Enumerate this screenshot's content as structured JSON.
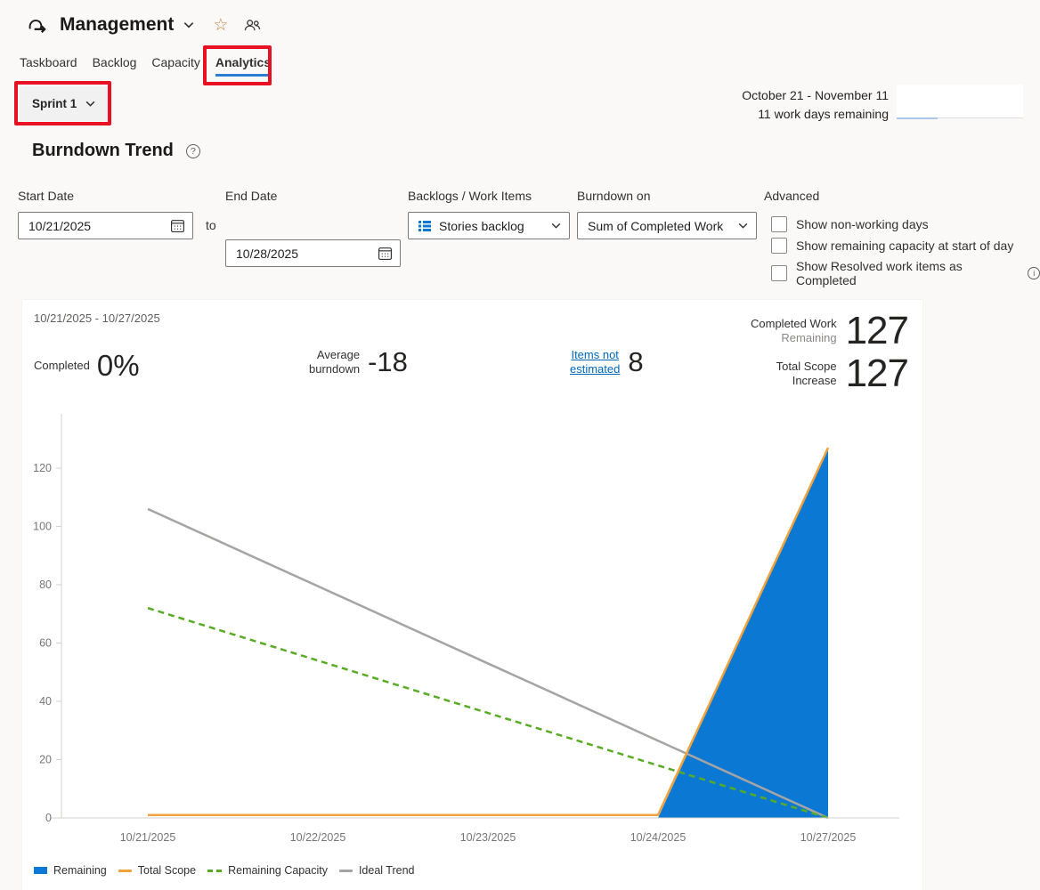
{
  "header": {
    "project_name": "Management",
    "tabs": [
      {
        "label": "Taskboard",
        "active": false
      },
      {
        "label": "Backlog",
        "active": false
      },
      {
        "label": "Capacity",
        "active": false
      },
      {
        "label": "Analytics",
        "active": true
      }
    ],
    "sprint_selector": {
      "label": "Sprint 1"
    },
    "iteration_dates": "October 21 - November 11",
    "days_remaining": "11 work days remaining"
  },
  "page": {
    "title": "Burndown Trend"
  },
  "filters": {
    "start_date": {
      "label": "Start Date",
      "value": "10/21/2025"
    },
    "to_label": "to",
    "end_date": {
      "label": "End Date",
      "value": "10/28/2025"
    },
    "backlog_picker": {
      "label": "Backlogs / Work Items",
      "value": "Stories backlog"
    },
    "burndown_on": {
      "label": "Burndown on",
      "value": "Sum of Completed Work"
    },
    "advanced": {
      "label": "Advanced",
      "options": [
        {
          "label": "Show non-working days",
          "checked": false
        },
        {
          "label": "Show remaining capacity at start of day",
          "checked": false
        },
        {
          "label": "Show Resolved work items as Completed",
          "checked": false,
          "has_info_icon": true
        }
      ]
    }
  },
  "summary": {
    "chart_date_range": "10/21/2025 - 10/27/2025",
    "completed": {
      "label": "Completed",
      "value": "0%"
    },
    "average_burndown": {
      "label_line1": "Average",
      "label_line2": "burndown",
      "value": "-18"
    },
    "items_not_estimated": {
      "link_line1": "Items not",
      "link_line2": "estimated",
      "value": "8"
    },
    "completed_work_remaining": {
      "label_line1": "Completed Work",
      "label_line2": "Remaining",
      "value": "127"
    },
    "total_scope_increase": {
      "label_line1": "Total Scope",
      "label_line2": "Increase",
      "value": "127"
    }
  },
  "chart_data": {
    "type": "area",
    "title": "Burndown Trend",
    "x": [
      "10/21/2025",
      "10/22/2025",
      "10/23/2025",
      "10/24/2025",
      "10/27/2025"
    ],
    "series": [
      {
        "name": "Remaining",
        "render": "area",
        "color": "#0b79d4",
        "values": [
          0,
          0,
          0,
          0,
          127
        ]
      },
      {
        "name": "Total Scope",
        "render": "line",
        "color": "#f0a33c",
        "values": [
          1,
          1,
          1,
          1,
          127
        ]
      },
      {
        "name": "Remaining Capacity",
        "render": "line",
        "dashed": true,
        "color": "#57ac23",
        "values": [
          72,
          54,
          36,
          18,
          0
        ]
      },
      {
        "name": "Ideal Trend",
        "render": "line",
        "color": "#a6a4a2",
        "values": [
          106,
          79.5,
          53,
          26.5,
          0
        ]
      }
    ],
    "ylim": [
      0,
      138
    ],
    "yticks": [
      0,
      20,
      40,
      60,
      80,
      100,
      120
    ],
    "grid": false,
    "legend_position": "bottom-left"
  },
  "colors": {
    "accent_blue": "#0b79d4",
    "tab_underline": "#2b7cd3",
    "annotation_red": "#e81123",
    "link_blue": "#0067b8"
  }
}
